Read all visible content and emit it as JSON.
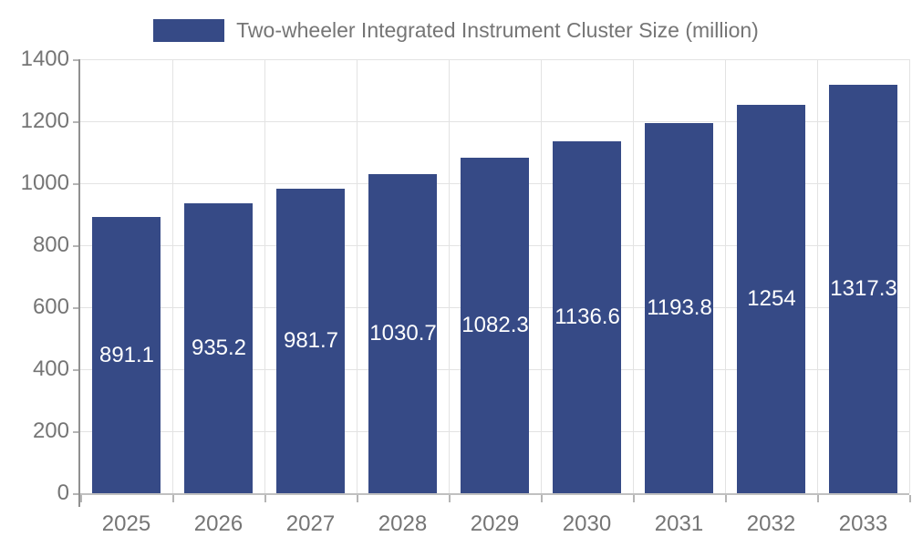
{
  "chart_data": {
    "type": "bar",
    "title": "",
    "legend": {
      "label": "Two-wheeler Integrated Instrument Cluster Size (million)",
      "position": "top-center"
    },
    "categories": [
      "2025",
      "2026",
      "2027",
      "2028",
      "2029",
      "2030",
      "2031",
      "2032",
      "2033"
    ],
    "series": [
      {
        "name": "Two-wheeler Integrated Instrument Cluster Size (million)",
        "values": [
          891.1,
          935.2,
          981.7,
          1030.7,
          1082.3,
          1136.6,
          1193.8,
          1254,
          1317.3
        ]
      }
    ],
    "xlabel": "",
    "ylabel": "",
    "ylim": [
      0,
      1400
    ],
    "yticks": [
      0,
      200,
      400,
      600,
      800,
      1000,
      1200,
      1400
    ],
    "grid": true,
    "bar_label_position": "inside-middle",
    "colors": {
      "bar": "#364a86",
      "bar_label": "#ffffff",
      "axis_text": "#757575",
      "legend_text": "#757575",
      "gridline": "#e3e3e3",
      "y_axis_line": "#909090",
      "x_axis_line": "#c0c0c0",
      "tick_mark": "#b5b5b5",
      "background": "#ffffff"
    }
  }
}
